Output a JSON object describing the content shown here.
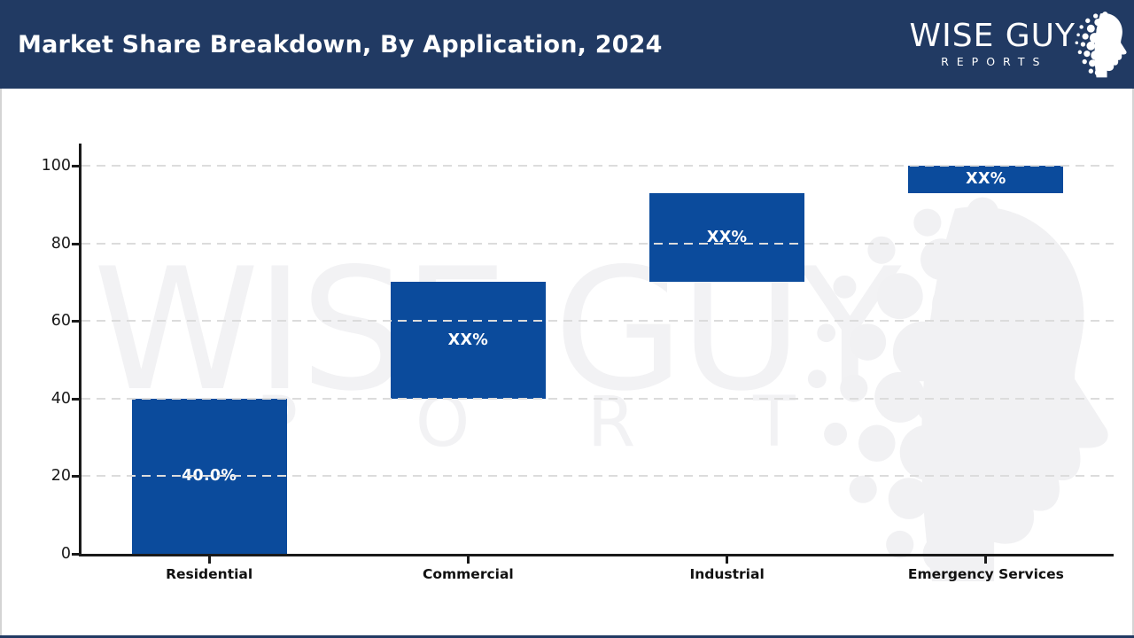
{
  "header": {
    "title": "Market Share Breakdown, By Application, 2024",
    "logo": {
      "line1": "WISE GUY",
      "line2": "REPORTS"
    }
  },
  "watermark": {
    "line1": "WISE GUY",
    "line2": "P O R T S"
  },
  "colors": {
    "header_bg": "#213a63",
    "bar": "#0b4b9c",
    "bar_label": "#ffffff",
    "axis": "#1a1a1a",
    "gridline": "#dcdcdc",
    "watermark": "#f2f2f4"
  },
  "chart_data": {
    "type": "bar",
    "subtype": "waterfall-breakdown",
    "title": "Market Share Breakdown, By Application, 2024",
    "categories": [
      "Residential",
      "Commercial",
      "Industrial",
      "Emergency Services"
    ],
    "segments": [
      {
        "category": "Residential",
        "start": 0,
        "end": 40,
        "size": 40,
        "label": "40.0%"
      },
      {
        "category": "Commercial",
        "start": 40,
        "end": 70,
        "size": 30,
        "label": "XX%"
      },
      {
        "category": "Industrial",
        "start": 70,
        "end": 93,
        "size": 23,
        "label": "XX%"
      },
      {
        "category": "Emergency Services",
        "start": 93,
        "end": 100,
        "size": 7,
        "label": "XX%"
      }
    ],
    "ylim": [
      0,
      100
    ],
    "yticks": [
      0,
      20,
      40,
      60,
      80,
      100
    ],
    "xlabel": "",
    "ylabel": "",
    "grid": "dashed-horizontal-over-bars",
    "legend": "none",
    "bar_color": "#0b4b9c"
  }
}
